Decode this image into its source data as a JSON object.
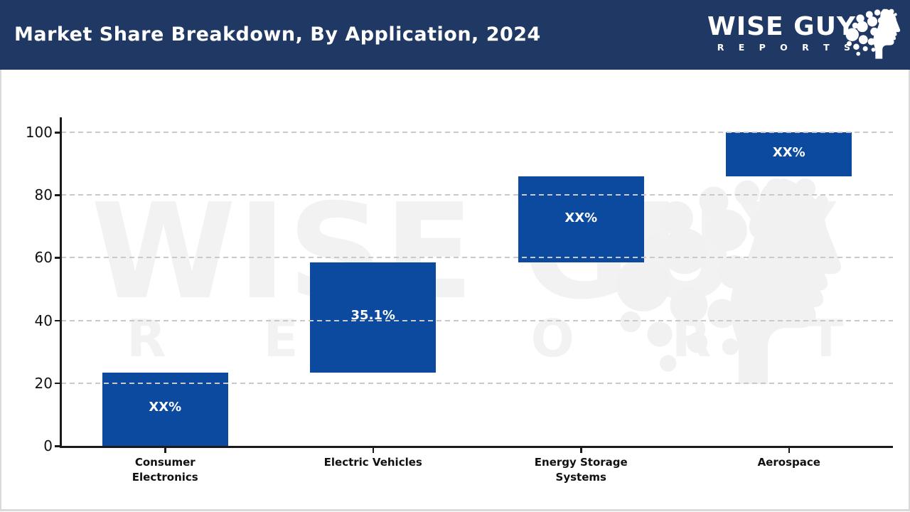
{
  "header": {
    "title": "Market Share Breakdown, By Application, 2024",
    "logo": {
      "line1": "WISE GUY",
      "line2": "R E P O R T S"
    }
  },
  "watermark": {
    "line1": "WISE GUY",
    "line2": "R E P O R T S"
  },
  "chart_data": {
    "type": "bar",
    "subtype": "waterfall",
    "title": "Market Share Breakdown, By Application, 2024",
    "categories": [
      "Consumer\nElectronics",
      "Electric Vehicles",
      "Energy Storage\nSystems",
      "Aerospace"
    ],
    "segments": [
      {
        "category": "Consumer Electronics",
        "start": 0,
        "end": 23.4,
        "value_label": "XX%"
      },
      {
        "category": "Electric Vehicles",
        "start": 23.4,
        "end": 58.5,
        "value_label": "35.1%"
      },
      {
        "category": "Energy Storage Systems",
        "start": 58.5,
        "end": 85.9,
        "value_label": "XX%"
      },
      {
        "category": "Aerospace",
        "start": 85.9,
        "end": 100,
        "value_label": "XX%"
      }
    ],
    "yticks": [
      0,
      20,
      40,
      60,
      80,
      100
    ],
    "ylim": [
      0,
      100
    ],
    "xlabel": "",
    "ylabel": "",
    "grid": "horizontal-dashed",
    "legend": false
  },
  "colors": {
    "header_bg": "#203864",
    "bar": "#0b4a9e",
    "grid_line": "#c9c9c9",
    "axis": "#1a1a1a",
    "watermark": "#f2f2f2",
    "header_text": "#ffffff",
    "bar_label_text": "#ffffff"
  }
}
